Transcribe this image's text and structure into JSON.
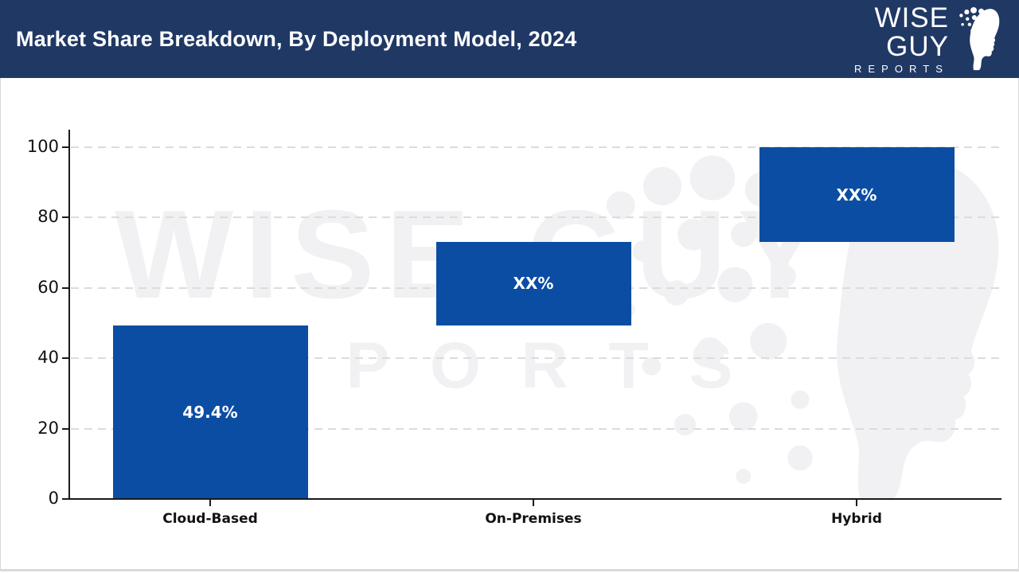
{
  "header": {
    "title": "Market Share Breakdown, By Deployment Model, 2024",
    "logo": {
      "line1": "WISE GUY",
      "line2": "REPORTS"
    }
  },
  "watermark": {
    "line1": "WISE GUY",
    "line2": "REPORTS"
  },
  "colors": {
    "header_bg": "#203864",
    "bar_fill": "#0b4da2",
    "bar_label": "#ffffff",
    "gridline": "#dcdcdc",
    "axis": "#1a1a1a",
    "tick_label": "#111111",
    "watermark": "#f1f1f3",
    "frame_border": "#d9d9d9"
  },
  "chart_data": {
    "type": "bar",
    "subtype": "floating-waterfall",
    "title": "Market Share Breakdown, By Deployment Model, 2024",
    "categories": [
      "Cloud-Based",
      "On-Premises",
      "Hybrid"
    ],
    "series": [
      {
        "name": "Market share (%)",
        "segments": [
          {
            "category": "Cloud-Based",
            "start": 0,
            "end": 49.4,
            "label": "49.4%"
          },
          {
            "category": "On-Premises",
            "start": 49.4,
            "end": 73,
            "label": "XX%"
          },
          {
            "category": "Hybrid",
            "start": 73,
            "end": 100,
            "label": "XX%"
          }
        ]
      }
    ],
    "xlabel": "",
    "ylabel": "",
    "yticks": [
      0,
      20,
      40,
      60,
      80,
      100
    ],
    "ylim": [
      0,
      105
    ],
    "grid": "horizontal-dashed",
    "legend": "none"
  }
}
